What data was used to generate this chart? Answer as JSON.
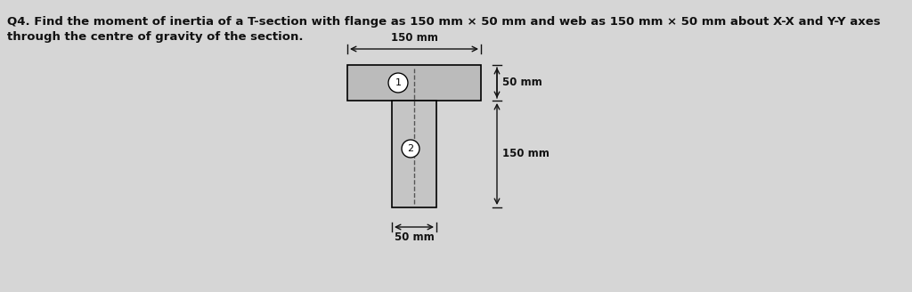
{
  "title_line1": "Q4. Find the moment of inertia of a T-section with flange as 150 mm × 50 mm and web as 150 mm × 50 mm about X-X and Y-Y axes",
  "title_line2": "through the centre of gravity of the section.",
  "title_fontsize": 9.5,
  "title_color": "#111111",
  "bg_color": "#d6d6d6",
  "flange_color": "#bbbbbb",
  "web_color": "#c5c5c5",
  "annotation_color": "#111111",
  "dashed_color": "#555555",
  "flange_label": "150 mm",
  "flange_height_label": "50 mm",
  "web_height_label": "150 mm",
  "web_width_label": "50 mm",
  "label1": "1",
  "label2": "2"
}
